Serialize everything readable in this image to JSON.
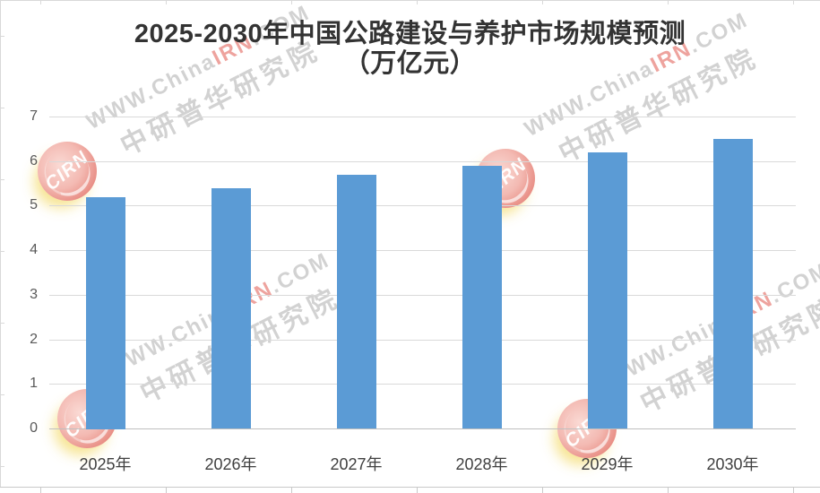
{
  "watermark": {
    "site_prefix": "WWW.China",
    "site_highlight": "IRN",
    "site_suffix": ".COM",
    "org": "中研普华研究院",
    "logo_text": "CIRN"
  },
  "chart_data": {
    "type": "bar",
    "title": "2025-2030年中国公路建设与养护市场规模预测",
    "subtitle": "（万亿元）",
    "categories": [
      "2025年",
      "2026年",
      "2027年",
      "2028年",
      "2029年",
      "2030年"
    ],
    "values": [
      5.2,
      5.4,
      5.7,
      5.9,
      6.2,
      6.5
    ],
    "xlabel": "",
    "ylabel": "",
    "ylim": [
      0,
      7
    ],
    "y_ticks": [
      0,
      1,
      2,
      3,
      4,
      5,
      6,
      7
    ],
    "grid": true,
    "legend": "none",
    "bar_color": "#5b9bd5",
    "gridline_color": "#d9d9d9",
    "axis_line_color": "#bfbfbf",
    "tick_label_color": "#595959",
    "title_color": "#333333"
  }
}
